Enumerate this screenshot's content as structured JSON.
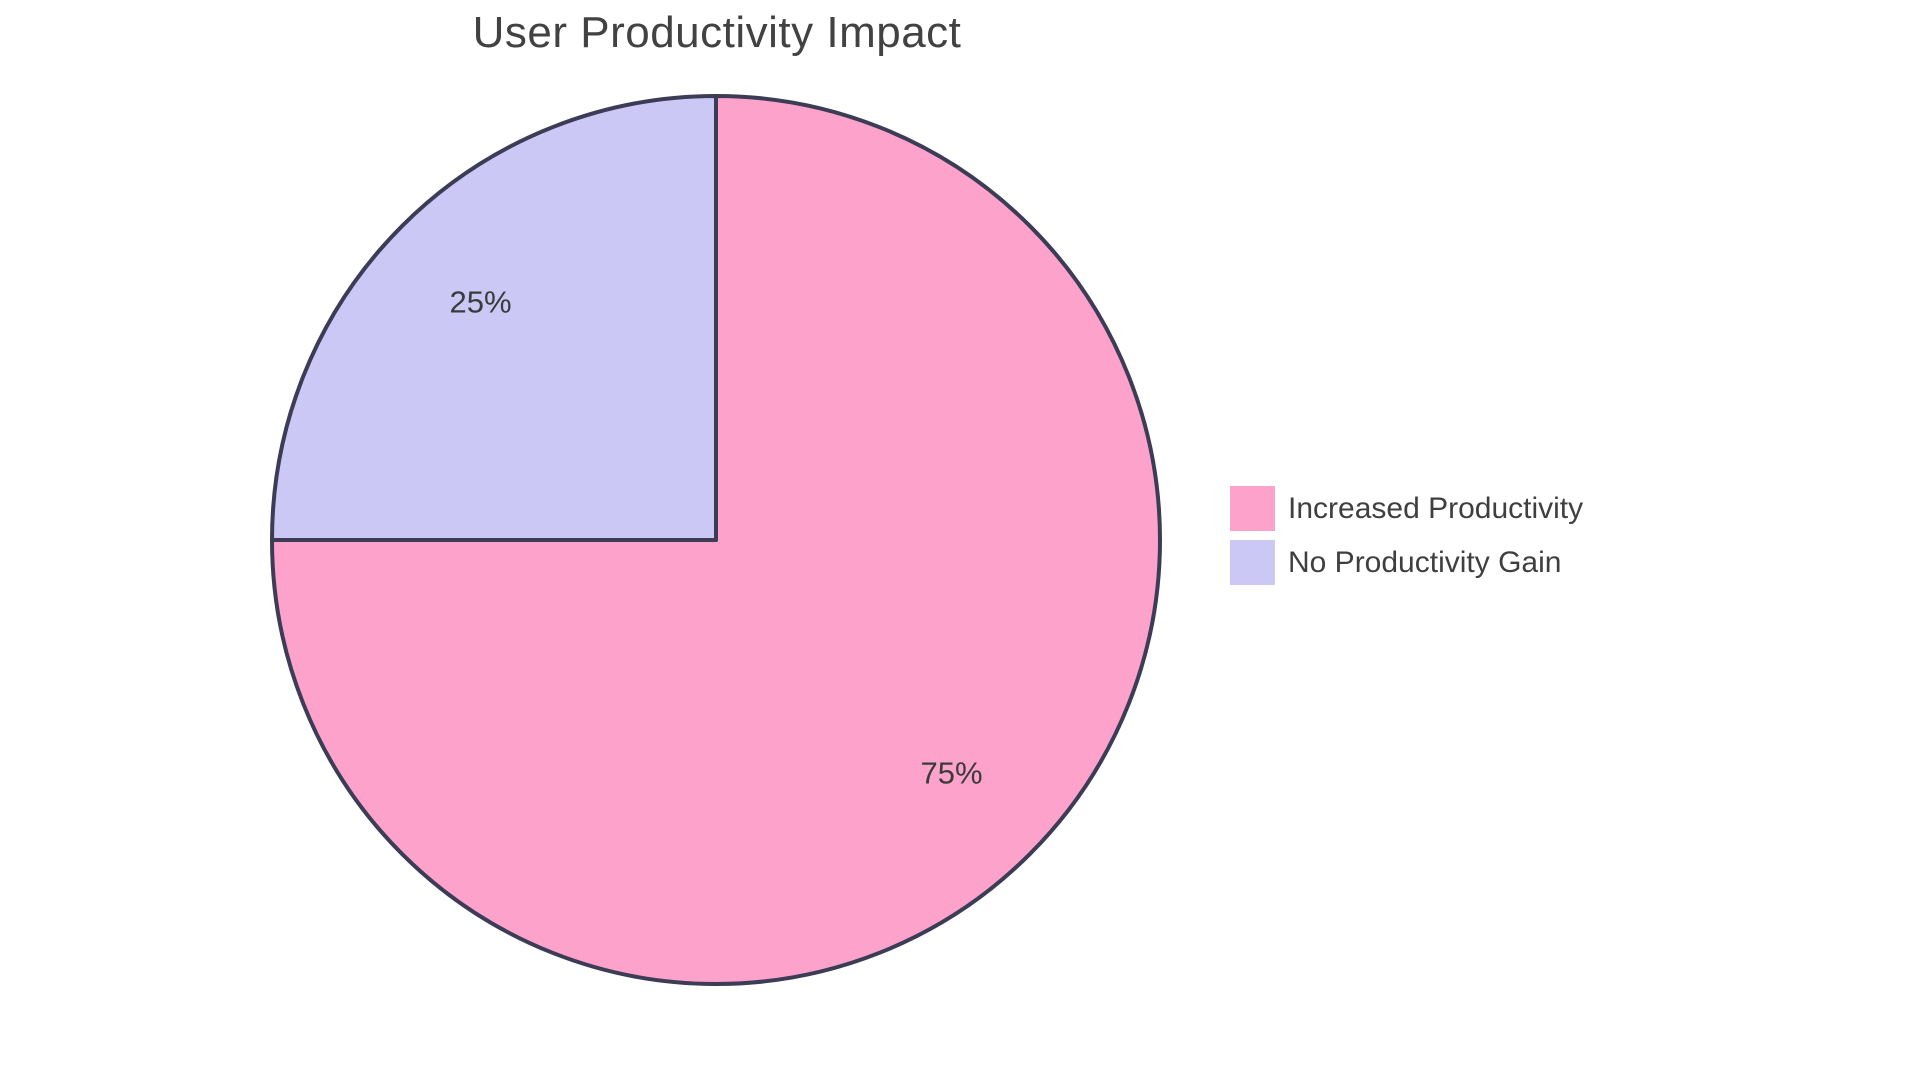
{
  "chart_data": {
    "type": "pie",
    "title": "User Productivity Impact",
    "labels": [
      "Increased Productivity",
      "No Productivity Gain"
    ],
    "values": [
      75,
      25
    ],
    "slice_labels": [
      "75%",
      "25%"
    ],
    "colors": [
      "#FCA2CB",
      "#CBC8F6"
    ],
    "slice_border_color": "#3C3C56",
    "text_color": "#3B3B3B",
    "legend_position": "right",
    "start_angle_deg": -90,
    "direction": "clockwise",
    "background": "#FFFFFF"
  }
}
